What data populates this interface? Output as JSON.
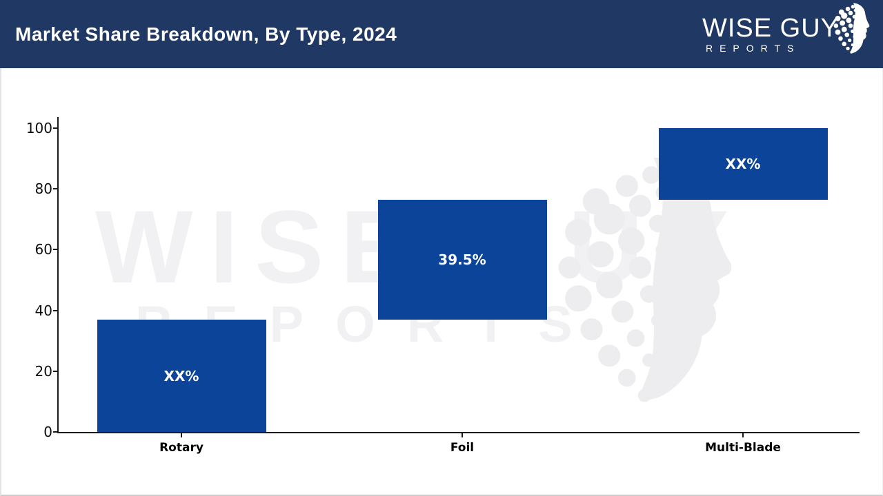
{
  "header": {
    "title": "Market Share Breakdown, By Type, 2024",
    "bg_color": "#203864"
  },
  "logo": {
    "name_line": "WISE GUY",
    "reports_line": "REPORTS"
  },
  "watermark": {
    "name_line": "WISE GUY",
    "reports_line": "REPORTS"
  },
  "chart_data": {
    "type": "bar",
    "variant": "waterfall",
    "title": "Market Share Breakdown, By Type, 2024",
    "categories": [
      "Rotary",
      "Foil",
      "Multi-Blade"
    ],
    "bars": [
      {
        "category": "Rotary",
        "start": 0,
        "end": 36.9,
        "label": "XX%"
      },
      {
        "category": "Foil",
        "start": 36.9,
        "end": 76.4,
        "label": "39.5%"
      },
      {
        "category": "Multi-Blade",
        "start": 76.4,
        "end": 100,
        "label": "XX%"
      }
    ],
    "yticks": [
      0,
      20,
      40,
      60,
      80,
      100
    ],
    "ylim": [
      0,
      103.6
    ],
    "xlabel": "",
    "ylabel": "",
    "grid": "horizontal-dashed",
    "legend": "none",
    "bar_color": "#0b4499",
    "bar_label_color": "#ffffff",
    "axis_color": "#1a1a1a",
    "grid_color": "#d8d8d8",
    "tick_label_color": "#0d0d0d"
  }
}
